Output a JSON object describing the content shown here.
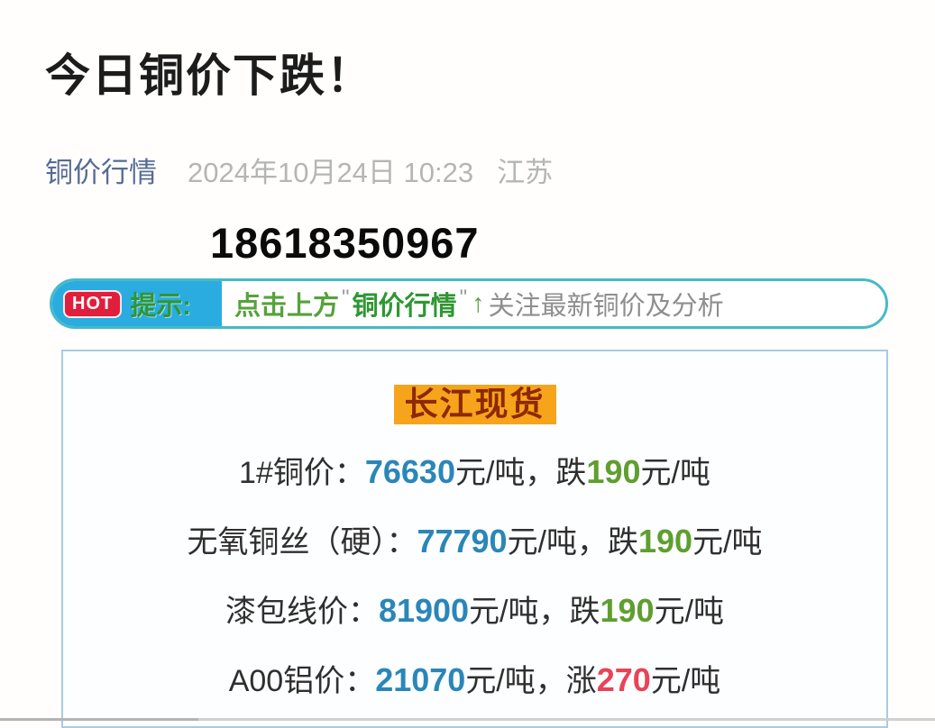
{
  "title": "今日铜价下跌！",
  "meta": {
    "author": "铜价行情",
    "date": "2024年10月24日 10:23",
    "region": "江苏"
  },
  "phone": "18618350967",
  "banner": {
    "hot_label": "HOT",
    "tip_label": "提示:",
    "click_prefix": "点击上方",
    "quote_open": "\"",
    "account_name": "铜价行情",
    "quote_close": "\"",
    "arrow": "↑",
    "suffix": "关注最新铜价及分析"
  },
  "price_box": {
    "header": "长江现货",
    "rows": [
      {
        "label": "1#铜价：",
        "price": "76630",
        "after_price": "元/吨，",
        "direction": "跌",
        "change": "190",
        "after_change": "元/吨",
        "trend": "down"
      },
      {
        "label": "无氧铜丝（硬）：",
        "price": "77790",
        "after_price": "元/吨，",
        "direction": "跌",
        "change": "190",
        "after_change": "元/吨",
        "trend": "down"
      },
      {
        "label": "漆包线价：",
        "price": "81900",
        "after_price": "元/吨，",
        "direction": "跌",
        "change": "190",
        "after_change": "元/吨",
        "trend": "down"
      },
      {
        "label": "A00铝价：",
        "price": "21070",
        "after_price": "元/吨，",
        "direction": "涨",
        "change": "270",
        "after_change": "元/吨",
        "trend": "up"
      }
    ]
  },
  "colors": {
    "accent-blue": "#2b86b8",
    "down-green": "#5f9e2f",
    "up-red": "#e84359",
    "author-blue": "#576b95",
    "date-gray": "#b5b5b5",
    "banner-bg-blue": "#2aace0",
    "banner-border": "#46bac6",
    "hot-red": "#e11e3c",
    "tip-green": "#2f9633",
    "link-green": "#55a23c",
    "muted-gray": "#8e8e8e",
    "header-bg-orange": "#f6a41c",
    "header-text-maroon": "#8d2800",
    "box-border": "#a9cbe0"
  }
}
